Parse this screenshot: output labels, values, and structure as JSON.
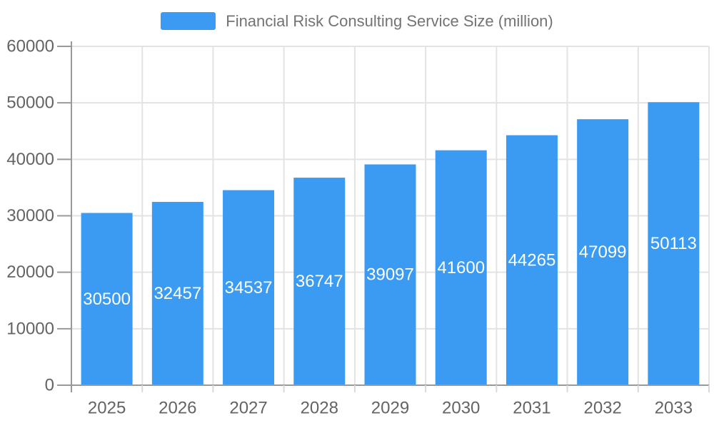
{
  "chart_data": {
    "type": "bar",
    "title": "Financial Risk Consulting Service Size (million)",
    "legend_position": "top-center",
    "categories": [
      "2025",
      "2026",
      "2027",
      "2028",
      "2029",
      "2030",
      "2031",
      "2032",
      "2033"
    ],
    "series": [
      {
        "name": "Financial Risk Consulting Service Size (million)",
        "values": [
          30500,
          32457,
          34537,
          36747,
          39097,
          41600,
          44265,
          47099,
          50113
        ]
      }
    ],
    "xlabel": "",
    "ylabel": "",
    "ylim": [
      0,
      60000
    ],
    "y_ticks": [
      0,
      10000,
      20000,
      30000,
      40000,
      50000,
      60000
    ],
    "grid": true,
    "bar_label_position": "inside-center",
    "colors": {
      "bar": "#3b9af1",
      "bar_label": "#ffffff",
      "grid_line": "#e3e3e3",
      "axis_line": "#999999",
      "minor_tick": "#d9d9d9",
      "tick_label": "#646464",
      "title": "#737373",
      "background": "#ffffff"
    }
  }
}
